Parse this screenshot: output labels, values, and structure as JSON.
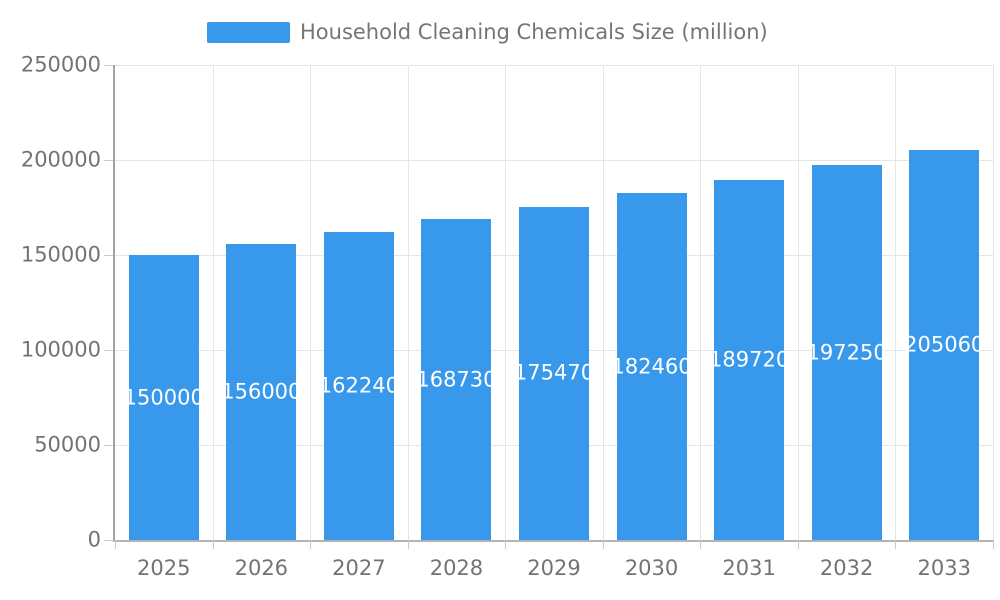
{
  "chart_data": {
    "type": "bar",
    "title": "Household Cleaning Chemicals Size (million)",
    "categories": [
      "2025",
      "2026",
      "2027",
      "2028",
      "2029",
      "2030",
      "2031",
      "2032",
      "2033"
    ],
    "series": [
      {
        "name": "Household Cleaning Chemicals Size (million)",
        "values": [
          150000,
          156000,
          162240,
          168730,
          175470,
          182460,
          189720,
          197250,
          205060
        ]
      }
    ],
    "bar_value_labels": [
      "150000",
      "156000",
      "162240",
      "168730",
      "175470",
      "182460",
      "189720",
      "197250",
      "205060"
    ],
    "xlabel": "",
    "ylabel": "",
    "ylim": [
      0,
      250000
    ],
    "ytick_interval": 50000,
    "ytick_labels": [
      "0",
      "50000",
      "100000",
      "150000",
      "200000",
      "250000"
    ],
    "grid": true,
    "legend_position": "top-center"
  },
  "legend": {
    "label": "Household Cleaning Chemicals Size (million)"
  },
  "colors": {
    "bar": "#3898ec",
    "bar_value_text": "#ffffff",
    "axis_text": "#737373",
    "legend_text": "#757575",
    "gridline": "#e6e6e6",
    "axis_line": "#a8a8a8",
    "tick": "#c9c9c9",
    "background": "#ffffff"
  }
}
